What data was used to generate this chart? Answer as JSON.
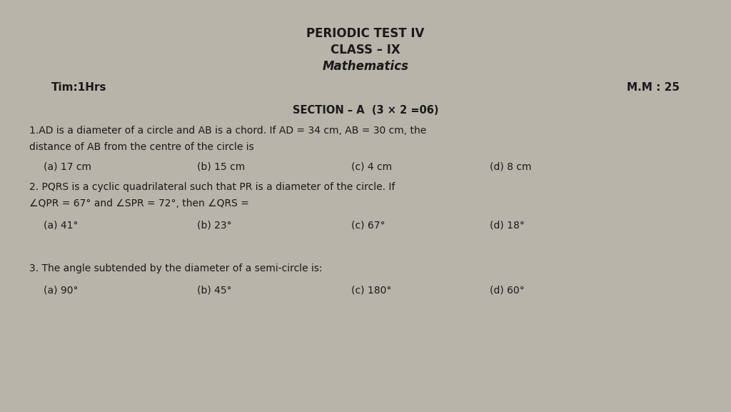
{
  "background_color": "#b8b4aa",
  "title1": "PERIODIC TEST IV",
  "title2": "CLASS – IX",
  "title3": "Mathematics",
  "time_label": "Tim:1Hrs",
  "mm_label": "M.M : 25",
  "section_label": "SECTION – A  (3 × 2 =06)",
  "q1_line1": "1.AD is a diameter of a circle and AB is a chord. If AD = 34 cm, AB = 30 cm, the",
  "q1_line2": "distance of AB from the centre of the circle is",
  "q1_options": [
    "(a) 17 cm",
    "(b) 15 cm",
    "(c) 4 cm",
    "(d) 8 cm"
  ],
  "q2_line1": "2. PQRS is a cyclic quadrilateral such that PR is a diameter of the circle. If",
  "q2_line2": "∠QPR = 67° and ∠SPR = 72°, then ∠QRS =",
  "q2_options": [
    "(a) 41°",
    "(b) 23°",
    "(c) 67°",
    "(d) 18°"
  ],
  "q3_line1": "3. The angle subtended by the diameter of a semi-circle is:",
  "q3_options": [
    "(a) 90°",
    "(b) 45°",
    "(c) 180°",
    "(d) 60°"
  ],
  "text_color": "#1a1a1a",
  "title_fontsize": 12,
  "body_fontsize": 10,
  "small_fontsize": 9.5
}
